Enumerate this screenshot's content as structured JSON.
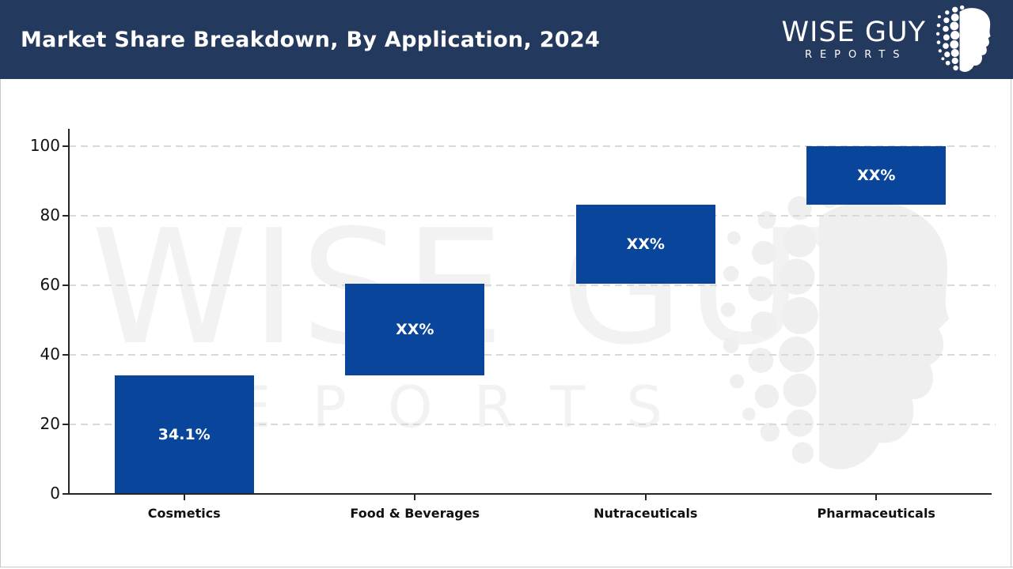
{
  "header": {
    "title": "Market Share Breakdown, By Application, 2024",
    "logo": {
      "name": "WISE GUY",
      "sub": "REPORTS"
    }
  },
  "watermark": {
    "name": "WISE GUY",
    "sub": "REPORTS"
  },
  "colors": {
    "header_bg": "#24395e",
    "bar": "#0a459c",
    "grid": "#d9d9d9",
    "axis": "#262626",
    "bar_label": "#ffffff",
    "frame": "#c9c9c9",
    "watermark": "#f2f2f2"
  },
  "chart_data": {
    "type": "bar",
    "subtype": "waterfall",
    "title": "Market Share Breakdown, By Application, 2024",
    "categories": [
      "Cosmetics",
      "Food & Beverages",
      "Nutraceuticals",
      "Pharmaceuticals"
    ],
    "segments": [
      {
        "category": "Cosmetics",
        "start": 0,
        "end": 34.1,
        "label": "34.1%"
      },
      {
        "category": "Food & Beverages",
        "start": 34.1,
        "end": 60.4,
        "label": "XX%"
      },
      {
        "category": "Nutraceuticals",
        "start": 60.4,
        "end": 83.1,
        "label": "XX%"
      },
      {
        "category": "Pharmaceuticals",
        "start": 83.1,
        "end": 100,
        "label": "XX%"
      }
    ],
    "yticks": [
      0,
      20,
      40,
      60,
      80,
      100
    ],
    "ylim": [
      0,
      105
    ],
    "xlabel": "",
    "ylabel": "",
    "grid": "horizontal-dashed",
    "legend": "none",
    "bar_color": "#0a459c"
  }
}
